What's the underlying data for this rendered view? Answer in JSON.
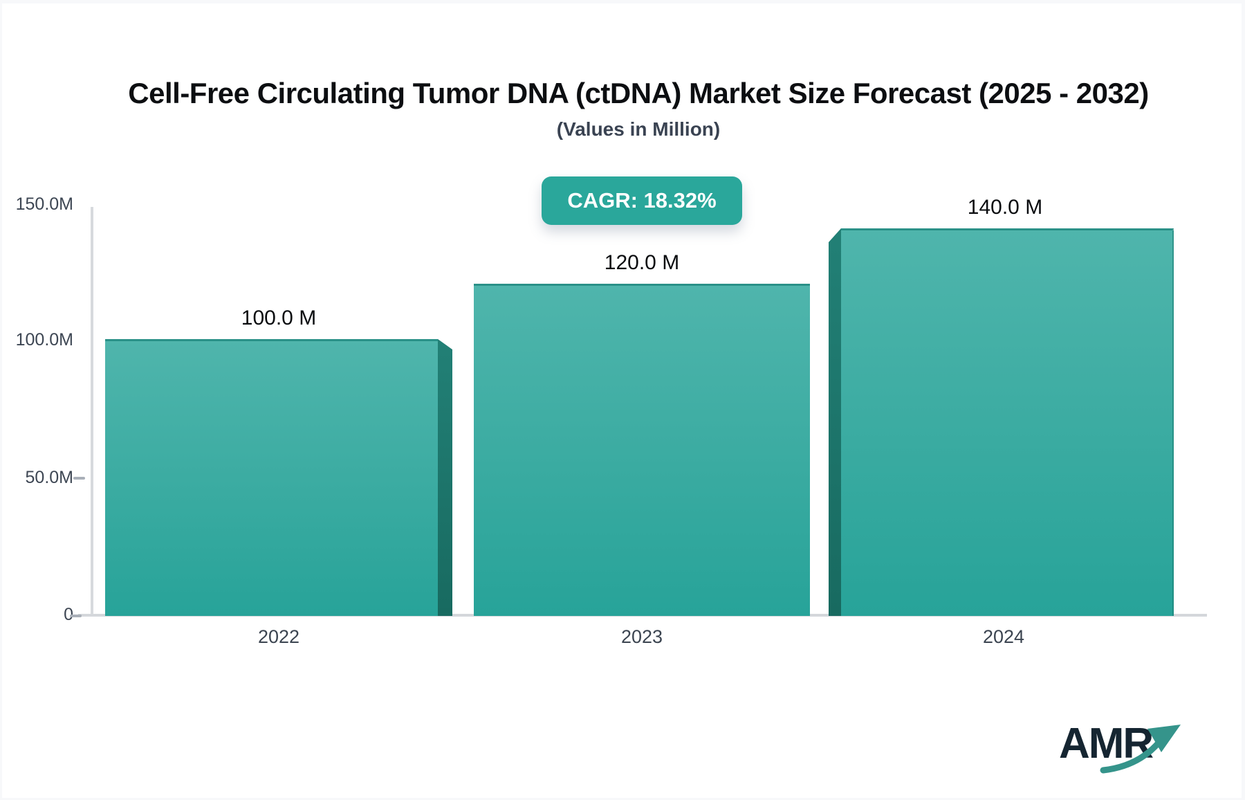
{
  "header": {
    "title": "Cell-Free Circulating Tumor DNA (ctDNA) Market Size Forecast (2025 - 2032)",
    "subtitle": "(Values in Million)"
  },
  "cagr_badge": {
    "label": "CAGR: 18.32%",
    "background": "#2aa79b",
    "text_color": "#ffffff"
  },
  "chart_data": {
    "type": "bar",
    "title": "Cell-Free Circulating Tumor DNA (ctDNA) Market Size Forecast (2025 - 2032)",
    "subtitle": "(Values in Million)",
    "unit": "Million",
    "categories": [
      "2022",
      "2023",
      "2024"
    ],
    "values": [
      100.0,
      120.0,
      140.0
    ],
    "bar_labels": [
      "100.0 M",
      "120.0 M",
      "140.0 M"
    ],
    "cagr_percent": 18.32,
    "y_axis": {
      "ticks": [
        "150.0M",
        "100.0M",
        "50.0M",
        "0"
      ],
      "range": [
        0,
        150
      ]
    },
    "grid": false,
    "legend": false,
    "bar_colors": {
      "top": "#4fb5ac",
      "bottom": "#27a399",
      "side_edge": "#1d7c72",
      "top_border": "#2a9188"
    }
  },
  "logo": {
    "text": "AMR",
    "text_color": "#152531",
    "arrow_color": "#35948b"
  }
}
